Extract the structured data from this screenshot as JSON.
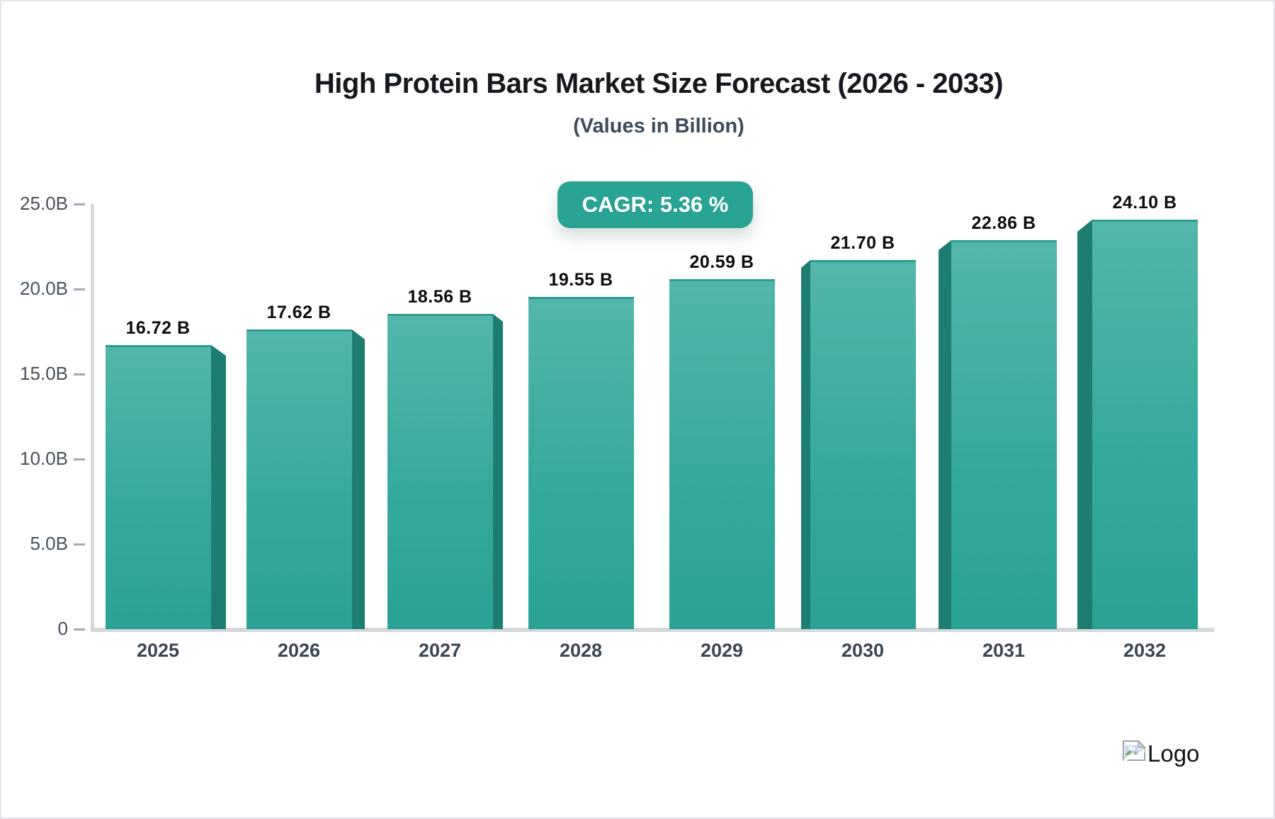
{
  "chart_data": {
    "type": "bar",
    "title": "High Protein Bars Market Size Forecast (2026 - 2033)",
    "subtitle": "(Values in Billion)",
    "cagr_label": "CAGR: 5.36 %",
    "categories": [
      "2025",
      "2026",
      "2027",
      "2028",
      "2029",
      "2030",
      "2031",
      "2032"
    ],
    "values": [
      16.72,
      17.62,
      18.56,
      19.55,
      20.59,
      21.7,
      22.86,
      24.1
    ],
    "value_labels": [
      "16.72 B",
      "17.62 B",
      "18.56 B",
      "19.55 B",
      "20.59 B",
      "21.70 B",
      "22.86 B",
      "24.10 B"
    ],
    "xlabel": "",
    "ylabel": "",
    "ylim": [
      0,
      25
    ],
    "y_ticks": [
      {
        "value": 0,
        "label": "0"
      },
      {
        "value": 5,
        "label": "5.0B"
      },
      {
        "value": 10,
        "label": "10.0B"
      },
      {
        "value": 15,
        "label": "15.0B"
      },
      {
        "value": 20,
        "label": "20.0B"
      },
      {
        "value": 25,
        "label": "25.0B"
      }
    ],
    "grid": false,
    "legend": "none",
    "bar_style": "3d-perspective-center-vanishing",
    "colors": {
      "bar_gradient_top": "#53b6aa",
      "bar_gradient_mid": "#35aa9c",
      "bar_gradient_bottom": "#29a294",
      "bar_side_face": "#1e7d71",
      "bar_top_edge": "#2e9c8f",
      "badge_background": "#29a392",
      "badge_text": "#ffffff",
      "axis_line": "#d6d9dc",
      "tick_mark": "#a2a8af",
      "y_label_text": "#47515c",
      "x_label_text": "#3b4652",
      "title_text": "#15181d",
      "subtitle_text": "#3d4a59",
      "value_label_text": "#0c0d0e"
    }
  },
  "footer": {
    "logo_alt_text": "Logo",
    "logo_icon": "broken-image-icon"
  }
}
